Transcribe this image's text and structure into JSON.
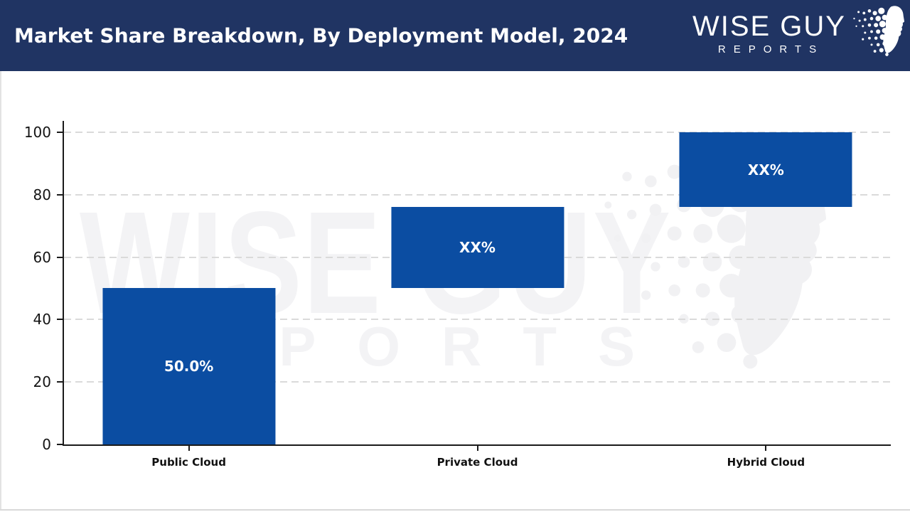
{
  "header": {
    "title": "Market Share Breakdown, By Deployment Model, 2024",
    "background_color": "#203463",
    "logo": {
      "line1": "WISE GUY",
      "line2": "REPORTS"
    }
  },
  "watermark": {
    "line1": "WISE GUY",
    "line2": "REPORTS"
  },
  "chart_data": {
    "type": "bar",
    "subtype": "waterfall",
    "title": "Market Share Breakdown, By Deployment Model, 2024",
    "categories": [
      "Public Cloud",
      "Private Cloud",
      "Hybrid Cloud"
    ],
    "bars": [
      {
        "category": "Public Cloud",
        "start": 0,
        "end": 50,
        "label": "50.0%"
      },
      {
        "category": "Private Cloud",
        "start": 50,
        "end": 76,
        "label": "XX%"
      },
      {
        "category": "Hybrid Cloud",
        "start": 76,
        "end": 100,
        "label": "XX%"
      }
    ],
    "xlabel": "",
    "ylabel": "",
    "yticks": [
      0,
      20,
      40,
      60,
      80,
      100
    ],
    "ylim": [
      0,
      100
    ],
    "grid": true,
    "legend": false,
    "bar_color": "#0b4da2",
    "bar_label_color": "#ffffff",
    "gridline_color": "#dadada",
    "axis_color": "#1a1a1a",
    "tick_label_color": "#141414"
  }
}
